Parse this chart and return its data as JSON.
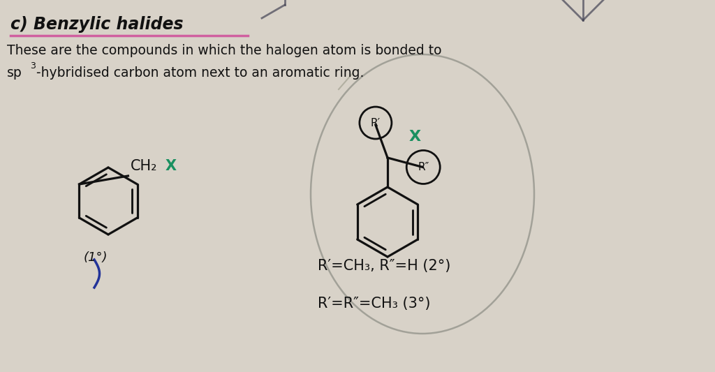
{
  "bg_color": "#d8d2c8",
  "title_text": "c) Benzylic halides",
  "title_color": "#111111",
  "title_underline_color": "#d060a0",
  "body_line1": "These are the compounds in which the halogen atom is bonded to",
  "body_line2": "sp³-hybridised carbon atom next to an aromatic ring.",
  "body_color": "#111111",
  "label_1degree": "(1°)",
  "label_ch2x": "CH₂X",
  "label_Rprime": "R′",
  "label_Rdprime": "R″",
  "label_X": "X",
  "label_X_color": "#1a9060",
  "eq1": "R′=CH₃, R″=H (2°)",
  "eq2": "R′=R″=CH₃ (3°)",
  "dark": "#111111",
  "ellipse_color": "#999990"
}
